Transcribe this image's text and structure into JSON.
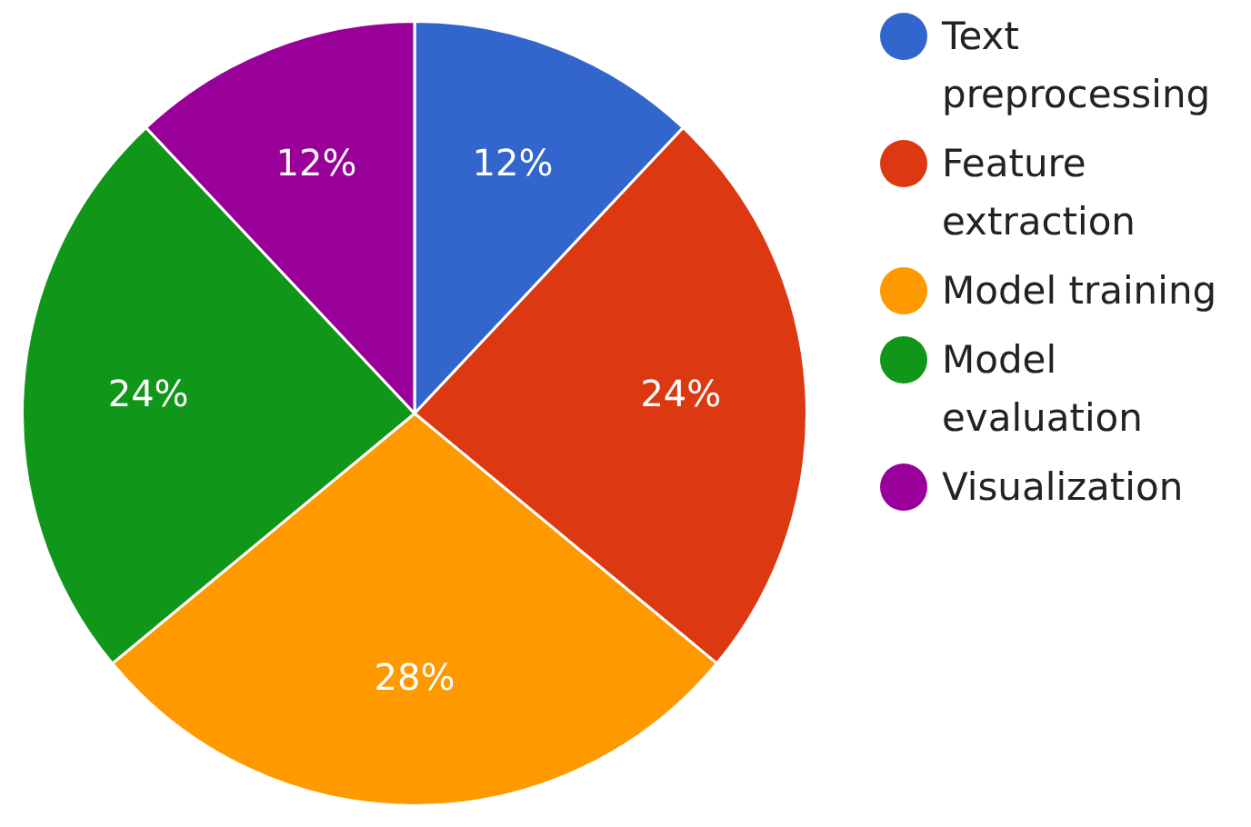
{
  "chart_data": {
    "type": "pie",
    "categories": [
      "Text preprocessing",
      "Feature extraction",
      "Model training",
      "Model evaluation",
      "Visualization"
    ],
    "values": [
      12,
      24,
      28,
      24,
      12
    ],
    "colors": [
      "#3366cc",
      "#dc3912",
      "#ff9900",
      "#109618",
      "#990099"
    ],
    "value_labels": [
      "12%",
      "24%",
      "28%",
      "24%",
      "12%"
    ],
    "legend": "right"
  }
}
